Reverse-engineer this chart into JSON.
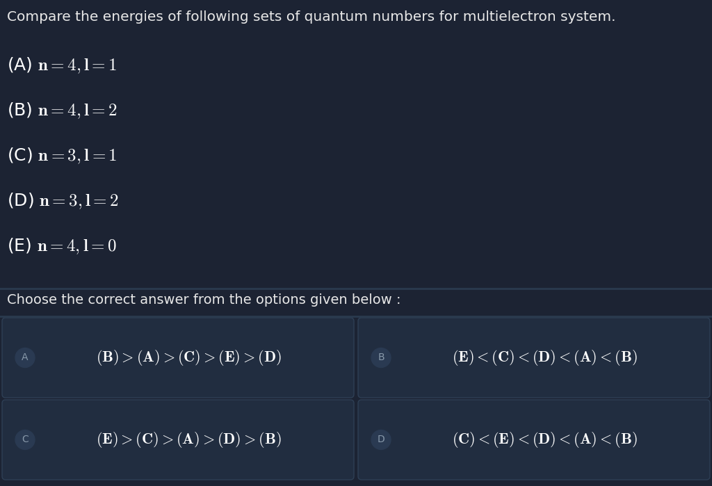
{
  "background_color": "#1c2333",
  "title": "Compare the energies of following sets of quantum numbers for multielectron system.",
  "title_fontsize": 14.5,
  "title_color": "#e8e8e8",
  "items_math": [
    "(A) $\\mathbf{n = 4, l = 1}$",
    "(B) $\\mathbf{n = 4, l = 2}$",
    "(C) $\\mathbf{n = 3, l = 1}$",
    "(D) $\\mathbf{n = 3, l = 2}$",
    "(E) $\\mathbf{n = 4, l = 0}$"
  ],
  "item_fontsize": 18,
  "item_color": "#ffffff",
  "choose_text": "Choose the correct answer from the options given below :",
  "choose_fontsize": 14,
  "choose_color": "#e8e8e8",
  "option_box_color": "#212d40",
  "option_box_border_color": "#2e3f55",
  "option_label_color": "#8899aa",
  "option_text_color": "#ffffff",
  "options": [
    {
      "label": "A",
      "text": "$\\mathbf{(B) > (A) > (C) > (E) > (D)}$"
    },
    {
      "label": "B",
      "text": "$\\mathbf{(E) < (C) < (D) < (A) < (B)}$"
    },
    {
      "label": "C",
      "text": "$\\mathbf{(E) > (C) > (A) > (D) > (B)}$"
    },
    {
      "label": "D",
      "text": "$\\mathbf{(C) < (E) < (D) < (A) < (B)}$"
    }
  ],
  "option_fontsize": 16,
  "separator_color": "#2a3a4e"
}
